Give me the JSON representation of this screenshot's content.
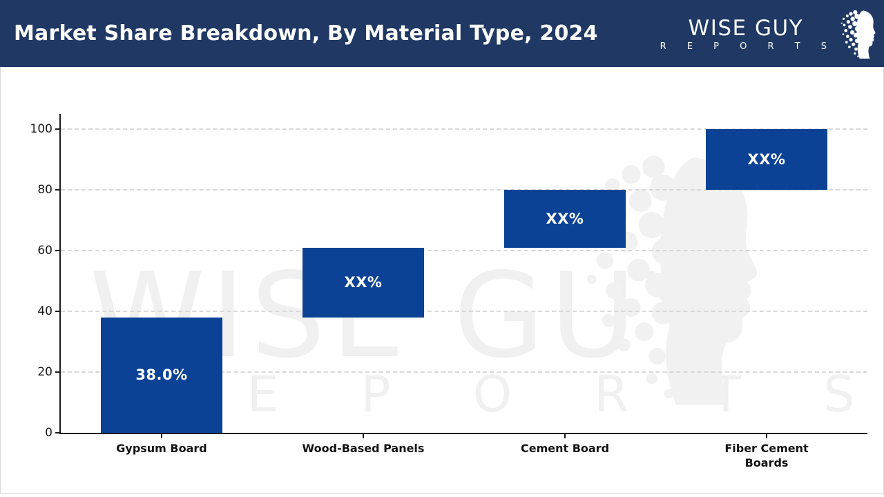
{
  "header": {
    "title": "Market Share Breakdown, By Material Type, 2024",
    "bg_color": "#1f3864",
    "logo": {
      "line1": "WISE GUY",
      "line2": "R E P O R T S",
      "icon": "dotted-head-profile"
    }
  },
  "watermark": {
    "line1": "WISE GUY",
    "line2": "R E P O R T S",
    "icon": "dotted-head-profile",
    "color": "#f0f0f0"
  },
  "chart_data": {
    "type": "bar",
    "variant": "waterfall",
    "title": "Market Share Breakdown, By Material Type, 2024",
    "categories": [
      "Gypsum Board",
      "Wood-Based Panels",
      "Cement Board",
      "Fiber Cement\nBoards"
    ],
    "segments": [
      {
        "start": 0,
        "end": 38
      },
      {
        "start": 38,
        "end": 61
      },
      {
        "start": 61,
        "end": 80
      },
      {
        "start": 80,
        "end": 100
      }
    ],
    "values": [
      38,
      23,
      19,
      20
    ],
    "bar_labels": [
      "38.0%",
      "XX%",
      "XX%",
      "XX%"
    ],
    "yticks": [
      0,
      20,
      40,
      60,
      80,
      100
    ],
    "ylim": [
      0,
      105
    ],
    "xlabel": "",
    "ylabel": "",
    "grid": "horizontal-dashed",
    "legend": "none",
    "bar_color": "#0b4295",
    "label_color": "#ffffff",
    "axis_color": "#1a1a1a",
    "gridline_color": "#d8d8d8"
  }
}
